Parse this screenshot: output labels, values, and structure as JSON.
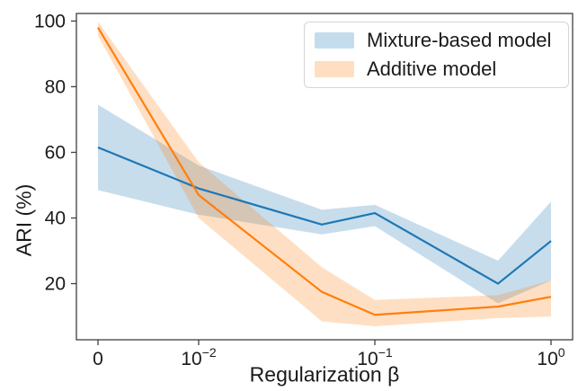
{
  "chart_data": {
    "type": "line",
    "title": "",
    "xlabel": "Regularization β",
    "ylabel": "ARI (%)",
    "x_scale": "log (with zero shown at left)",
    "x": [
      0,
      0.01,
      0.05,
      0.1,
      0.5,
      1.0
    ],
    "x_ticks": {
      "values": [
        0,
        0.01,
        0.1,
        1
      ],
      "labels": [
        "0",
        "10^−2",
        "10^−1",
        "10^0"
      ]
    },
    "y_ticks": [
      20,
      40,
      60,
      80,
      100
    ],
    "ylim": [
      2.9,
      102.3
    ],
    "grid": false,
    "legend_position": "upper right",
    "series": [
      {
        "name": "Mixture-based model",
        "color": "#1f77b4",
        "values": [
          61.5,
          49,
          38,
          41.5,
          20,
          33
        ],
        "band_upper": [
          74.5,
          56,
          42.5,
          44,
          27,
          45
        ],
        "band_lower": [
          48.5,
          41,
          35,
          37.5,
          14,
          21
        ]
      },
      {
        "name": "Additive model",
        "color": "#ff7f0e",
        "values": [
          98,
          47,
          17.5,
          10.5,
          13,
          16
        ],
        "band_upper": [
          99.8,
          57,
          25,
          15,
          16.5,
          21
        ],
        "band_lower": [
          95.5,
          40,
          8.5,
          7,
          9.5,
          10
        ]
      }
    ]
  },
  "colors": {
    "spine": "#3f3f3f",
    "text": "#1a1a1a"
  }
}
